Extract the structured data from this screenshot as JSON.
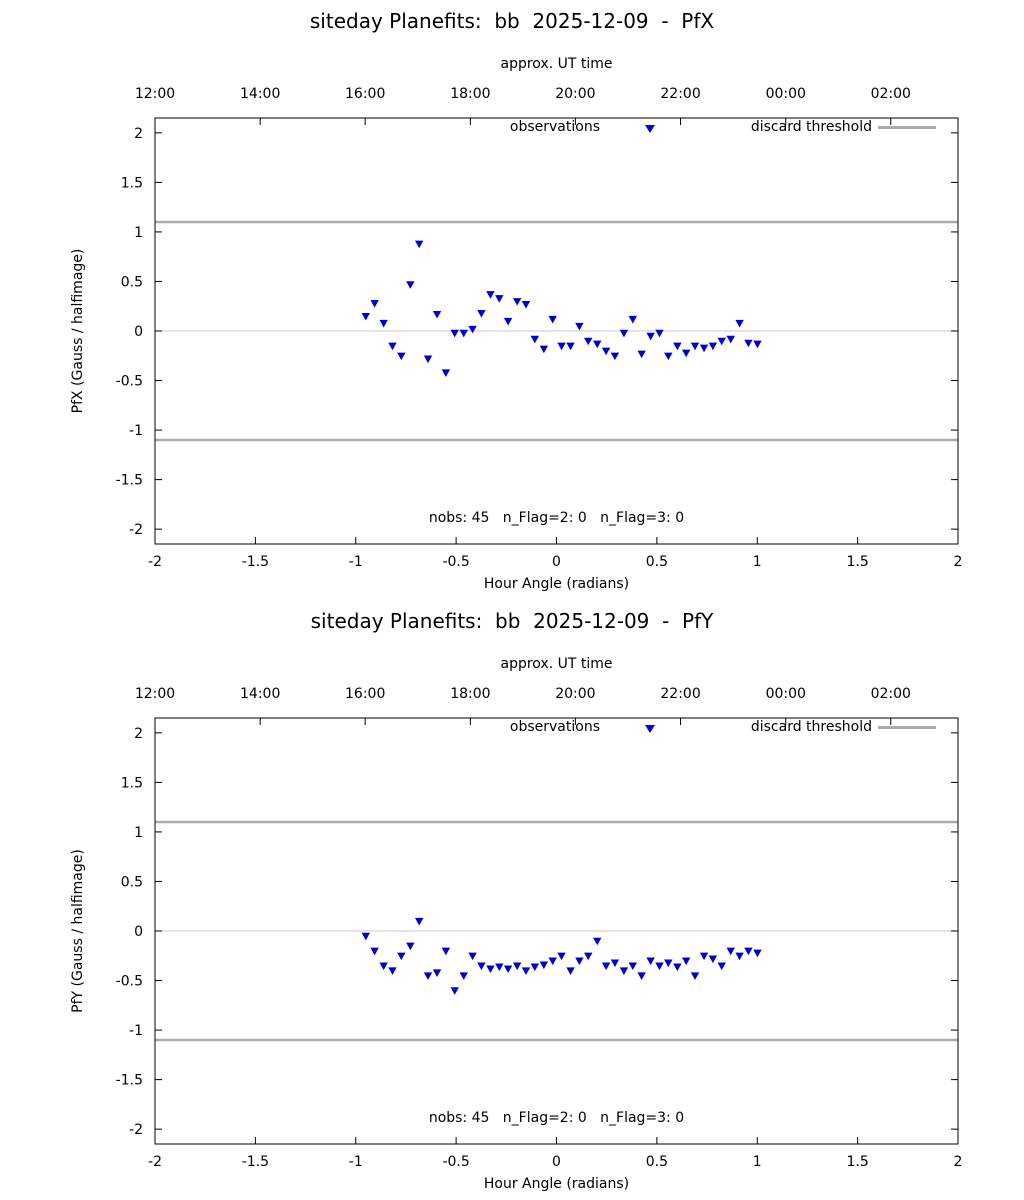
{
  "page": {
    "background": "#ffffff",
    "text_color": "#000000"
  },
  "chart_data": [
    {
      "type": "scatter",
      "title": "siteday Planefits:  bb  2025-12-09  -  PfX",
      "top_axis_label": "approx. UT time",
      "xlabel": "Hour Angle (radians)",
      "ylabel": "PfX (Gauss / halfimage)",
      "legend_observations": "observations",
      "legend_threshold": "discard threshold",
      "legend_position": "top-inside",
      "annotation": "nobs: 45   n_Flag=2: 0   n_Flag=3: 0",
      "grid": false,
      "xlim": [
        -2,
        2
      ],
      "ylim": [
        -2.15,
        2.15
      ],
      "x_ticks": [
        -2,
        -1.5,
        -1,
        -0.5,
        0,
        0.5,
        1,
        1.5,
        2
      ],
      "y_ticks": [
        -2,
        -1.5,
        -1,
        -0.5,
        0,
        0.5,
        1,
        1.5,
        2
      ],
      "x2_ticks": [
        {
          "label": "12:00",
          "x": -2.0
        },
        {
          "label": "14:00",
          "x": -1.476
        },
        {
          "label": "16:00",
          "x": -0.953
        },
        {
          "label": "18:00",
          "x": -0.429
        },
        {
          "label": "20:00",
          "x": 0.094
        },
        {
          "label": "22:00",
          "x": 0.618
        },
        {
          "label": "00:00",
          "x": 1.142
        },
        {
          "label": "02:00",
          "x": 1.665
        }
      ],
      "threshold_y": [
        1.1,
        -1.1
      ],
      "zero_line_y": 0,
      "marker_color": "#0000cd",
      "threshold_color": "#ababab",
      "zero_line_color": "#c8c8c8",
      "series": [
        {
          "name": "observations",
          "marker": "triangle-down",
          "x": [
            -0.95,
            -0.906,
            -0.861,
            -0.817,
            -0.773,
            -0.728,
            -0.684,
            -0.64,
            -0.595,
            -0.551,
            -0.507,
            -0.462,
            -0.418,
            -0.374,
            -0.329,
            -0.285,
            -0.241,
            -0.196,
            -0.152,
            -0.108,
            -0.063,
            -0.019,
            0.025,
            0.07,
            0.114,
            0.158,
            0.203,
            0.247,
            0.291,
            0.336,
            0.38,
            0.424,
            0.469,
            0.513,
            0.557,
            0.602,
            0.646,
            0.69,
            0.735,
            0.779,
            0.823,
            0.868,
            0.912,
            0.956,
            1.001
          ],
          "y": [
            0.15,
            0.28,
            0.08,
            -0.15,
            -0.25,
            0.47,
            0.88,
            -0.28,
            0.17,
            -0.42,
            -0.02,
            -0.02,
            0.02,
            0.18,
            0.37,
            0.33,
            0.1,
            0.3,
            0.27,
            -0.08,
            -0.18,
            0.12,
            -0.15,
            -0.15,
            0.05,
            -0.1,
            -0.13,
            -0.2,
            -0.25,
            -0.02,
            0.12,
            -0.23,
            -0.05,
            -0.02,
            -0.25,
            -0.15,
            -0.22,
            -0.15,
            -0.17,
            -0.15,
            -0.1,
            -0.08,
            0.08,
            -0.12,
            -0.13
          ]
        }
      ]
    },
    {
      "type": "scatter",
      "title": "siteday Planefits:  bb  2025-12-09  -  PfY",
      "top_axis_label": "approx. UT time",
      "xlabel": "Hour Angle (radians)",
      "ylabel": "PfY (Gauss / halfimage)",
      "legend_observations": "observations",
      "legend_threshold": "discard threshold",
      "legend_position": "top-inside",
      "annotation": "nobs: 45   n_Flag=2: 0   n_Flag=3: 0",
      "grid": false,
      "xlim": [
        -2,
        2
      ],
      "ylim": [
        -2.15,
        2.15
      ],
      "x_ticks": [
        -2,
        -1.5,
        -1,
        -0.5,
        0,
        0.5,
        1,
        1.5,
        2
      ],
      "y_ticks": [
        -2,
        -1.5,
        -1,
        -0.5,
        0,
        0.5,
        1,
        1.5,
        2
      ],
      "x2_ticks": [
        {
          "label": "12:00",
          "x": -2.0
        },
        {
          "label": "14:00",
          "x": -1.476
        },
        {
          "label": "16:00",
          "x": -0.953
        },
        {
          "label": "18:00",
          "x": -0.429
        },
        {
          "label": "20:00",
          "x": 0.094
        },
        {
          "label": "22:00",
          "x": 0.618
        },
        {
          "label": "00:00",
          "x": 1.142
        },
        {
          "label": "02:00",
          "x": 1.665
        }
      ],
      "threshold_y": [
        1.1,
        -1.1
      ],
      "zero_line_y": 0,
      "marker_color": "#0000cd",
      "threshold_color": "#ababab",
      "zero_line_color": "#c8c8c8",
      "series": [
        {
          "name": "observations",
          "marker": "triangle-down",
          "x": [
            -0.95,
            -0.906,
            -0.861,
            -0.817,
            -0.773,
            -0.728,
            -0.684,
            -0.64,
            -0.595,
            -0.551,
            -0.507,
            -0.462,
            -0.418,
            -0.374,
            -0.329,
            -0.285,
            -0.241,
            -0.196,
            -0.152,
            -0.108,
            -0.063,
            -0.019,
            0.025,
            0.07,
            0.114,
            0.158,
            0.203,
            0.247,
            0.291,
            0.336,
            0.38,
            0.424,
            0.469,
            0.513,
            0.557,
            0.602,
            0.646,
            0.69,
            0.735,
            0.779,
            0.823,
            0.868,
            0.912,
            0.956,
            1.001
          ],
          "y": [
            -0.05,
            -0.2,
            -0.35,
            -0.4,
            -0.25,
            -0.15,
            0.1,
            -0.45,
            -0.42,
            -0.2,
            -0.6,
            -0.45,
            -0.25,
            -0.35,
            -0.38,
            -0.36,
            -0.38,
            -0.35,
            -0.4,
            -0.36,
            -0.34,
            -0.3,
            -0.25,
            -0.4,
            -0.3,
            -0.25,
            -0.1,
            -0.35,
            -0.32,
            -0.4,
            -0.35,
            -0.45,
            -0.3,
            -0.35,
            -0.32,
            -0.36,
            -0.3,
            -0.45,
            -0.25,
            -0.28,
            -0.35,
            -0.2,
            -0.25,
            -0.2,
            -0.22
          ]
        }
      ]
    }
  ]
}
